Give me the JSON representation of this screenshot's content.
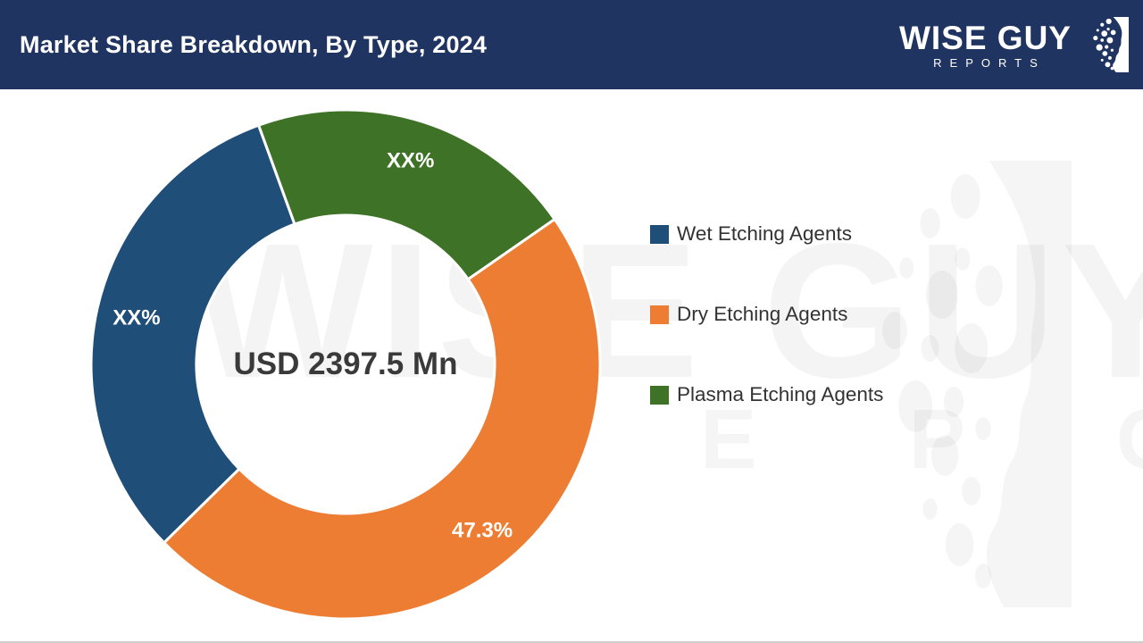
{
  "header": {
    "title": "Market Share Breakdown, By Type, 2024",
    "logo_line1": "WISE GUY",
    "logo_line2": "REPORTS"
  },
  "watermark": {
    "line1": "WISE GUY",
    "line2": "R E P O R T S"
  },
  "chart_data": {
    "type": "pie",
    "subtype": "donut",
    "title": "Market Share Breakdown, By Type, 2024",
    "center_label": "USD 2397.5 Mn",
    "start_angle_deg": -20,
    "donut": {
      "outer_radius": 285,
      "inner_radius": 167,
      "label_radius": 240
    },
    "slices": [
      {
        "name": "Plasma Etching Agents",
        "value": 20.9,
        "label": "XX%",
        "color": "#3E7226"
      },
      {
        "name": "Dry Etching Agents",
        "value": 47.3,
        "label": "47.3%",
        "color": "#ED7D33"
      },
      {
        "name": "Wet Etching Agents",
        "value": 31.8,
        "label": "XX%",
        "color": "#1F4E79"
      }
    ],
    "legend": [
      {
        "label": "Wet Etching Agents",
        "color": "#1F4E79"
      },
      {
        "label": "Dry Etching Agents",
        "color": "#ED7D33"
      },
      {
        "label": "Plasma Etching Agents",
        "color": "#3E7226"
      }
    ],
    "legend_position": "right"
  },
  "colors": {
    "header_bg": "#203462",
    "center_text": "#3A3A3A",
    "legend_text": "#333333",
    "slice_gap": "#FFFFFF"
  }
}
